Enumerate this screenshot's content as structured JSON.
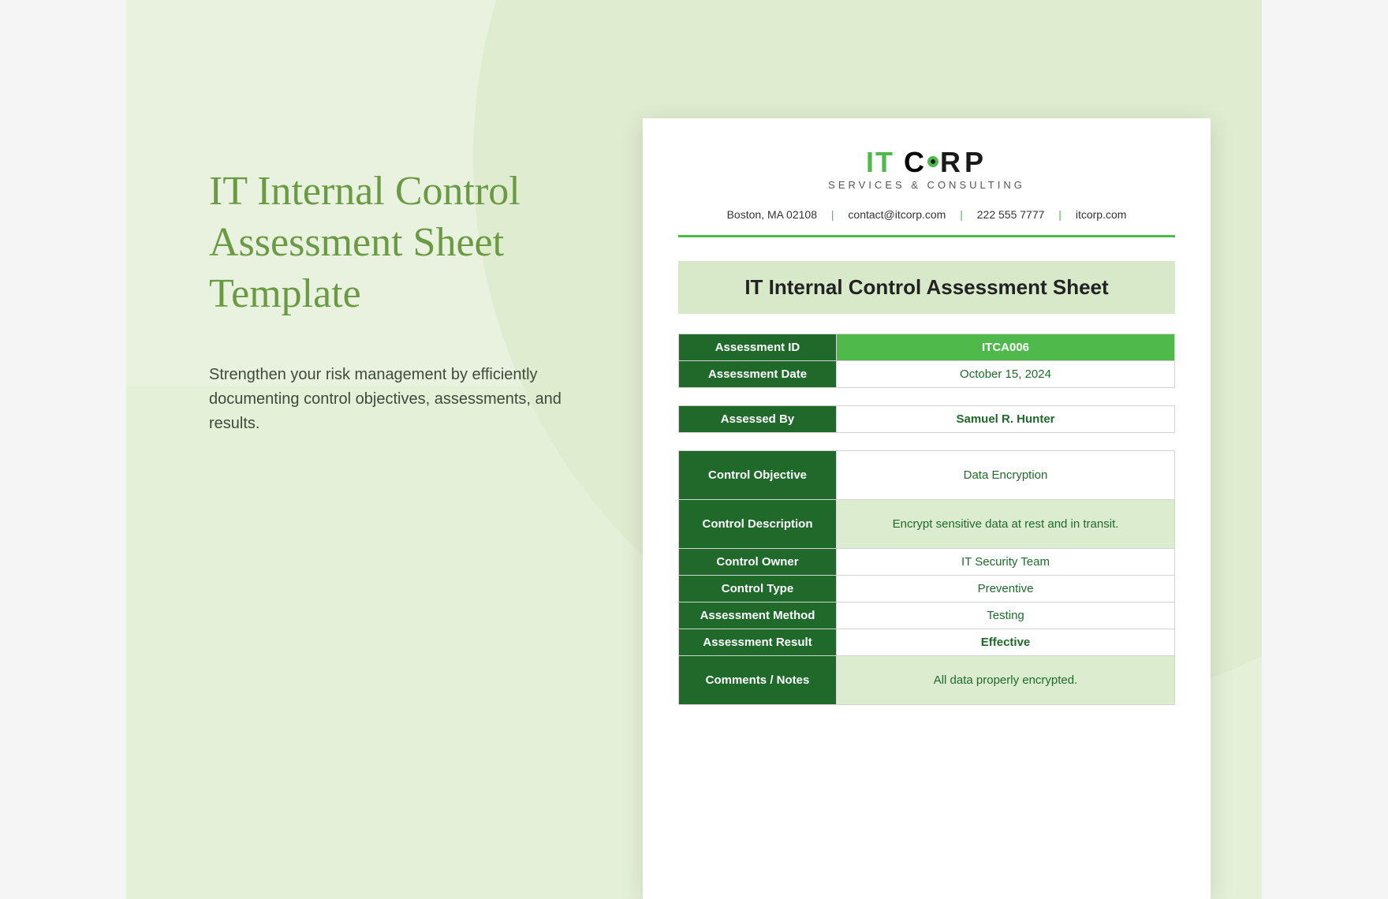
{
  "left": {
    "title": "IT Internal Control Assessment Sheet Template",
    "subtitle": "Strengthen your risk management by efficiently documenting control objectives, assessments, and results."
  },
  "logo": {
    "it": "IT",
    "corp": "CORP",
    "tagline": "SERVICES & CONSULTING"
  },
  "contact": {
    "address": "Boston, MA 02108",
    "email": "contact@itcorp.com",
    "phone": "222 555 7777",
    "site": "itcorp.com"
  },
  "sheet": {
    "title": "IT Internal Control Assessment Sheet",
    "labels": {
      "assessment_id": "Assessment ID",
      "assessment_date": "Assessment Date",
      "assessed_by": "Assessed By",
      "control_objective": "Control Objective",
      "control_description": "Control Description",
      "control_owner": "Control Owner",
      "control_type": "Control Type",
      "assessment_method": "Assessment Method",
      "assessment_result": "Assessment Result",
      "comments": "Comments / Notes"
    },
    "values": {
      "assessment_id": "ITCA006",
      "assessment_date": "October 15, 2024",
      "assessed_by": "Samuel R. Hunter",
      "control_objective": "Data Encryption",
      "control_description": "Encrypt sensitive data at rest and in transit.",
      "control_owner": "IT Security Team",
      "control_type": "Preventive",
      "assessment_method": "Testing",
      "assessment_result": "Effective",
      "comments": "All data properly encrypted."
    }
  },
  "colors": {
    "dark_green": "#1f6a2b",
    "bright_green": "#4fb94b",
    "pale_green": "#d7e9c9",
    "light_green_cell": "#dceccf",
    "bg_top": "#e9f2de",
    "bg_body": "#e5f0d8",
    "bg_circle": "#dfeccf"
  }
}
